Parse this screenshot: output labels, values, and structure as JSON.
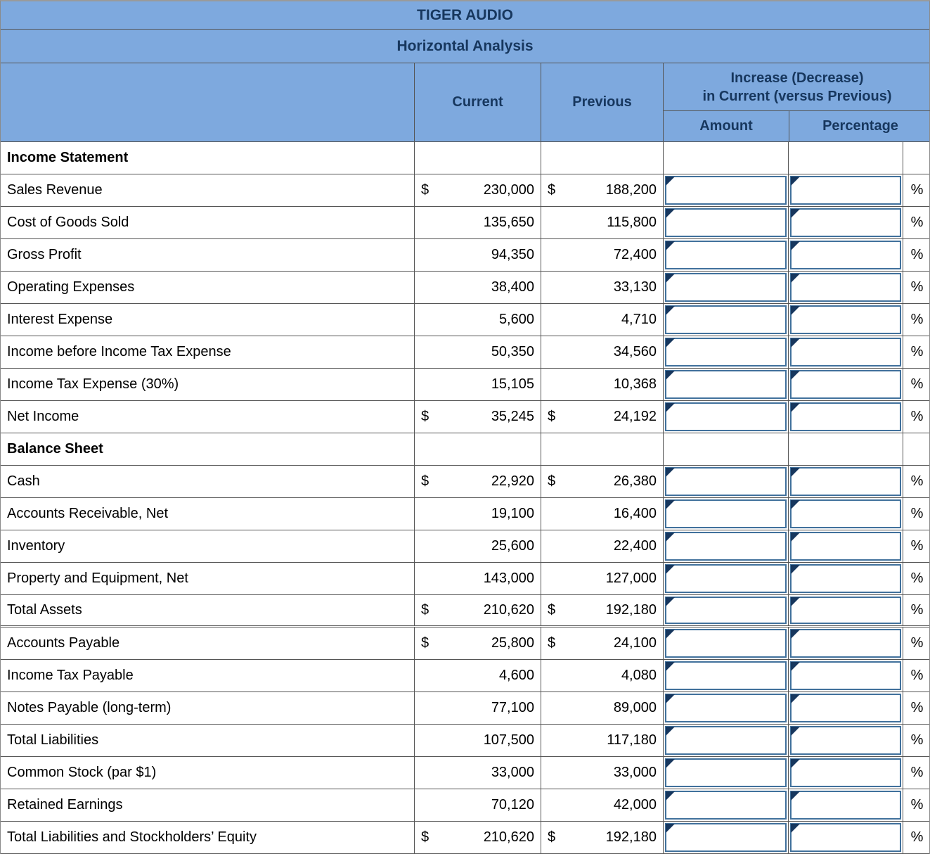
{
  "title": "TIGER AUDIO",
  "subtitle": "Horizontal Analysis",
  "columns": {
    "current": "Current",
    "previous": "Previous",
    "increase_line1": "Increase (Decrease)",
    "increase_line2": "in Current (versus Previous)",
    "amount": "Amount",
    "percentage": "Percentage"
  },
  "dollar_sign": "$",
  "percent_symbol": "%",
  "inputs": {
    "amount_value": "",
    "percentage_value": ""
  },
  "sections": [
    {
      "label": "Income Statement",
      "rows": [
        {
          "label": "Sales Revenue",
          "dollar": true,
          "current": "230,000",
          "previous": "188,200"
        },
        {
          "label": "Cost of Goods Sold",
          "dollar": false,
          "current": "135,650",
          "previous": "115,800"
        },
        {
          "label": "Gross Profit",
          "dollar": false,
          "current": "94,350",
          "previous": "72,400"
        },
        {
          "label": "Operating Expenses",
          "dollar": false,
          "current": "38,400",
          "previous": "33,130"
        },
        {
          "label": "Interest Expense",
          "dollar": false,
          "current": "5,600",
          "previous": "4,710"
        },
        {
          "label": "Income before Income Tax Expense",
          "dollar": false,
          "current": "50,350",
          "previous": "34,560"
        },
        {
          "label": "Income Tax Expense (30%)",
          "dollar": false,
          "current": "15,105",
          "previous": "10,368"
        },
        {
          "label": "Net Income",
          "dollar": true,
          "current": "35,245",
          "previous": "24,192"
        }
      ]
    },
    {
      "label": "Balance Sheet",
      "rows": [
        {
          "label": "Cash",
          "dollar": true,
          "current": "22,920",
          "previous": "26,380"
        },
        {
          "label": "Accounts Receivable, Net",
          "dollar": false,
          "current": "19,100",
          "previous": "16,400"
        },
        {
          "label": "Inventory",
          "dollar": false,
          "current": "25,600",
          "previous": "22,400"
        },
        {
          "label": "Property and Equipment, Net",
          "dollar": false,
          "current": "143,000",
          "previous": "127,000"
        },
        {
          "label": "Total Assets",
          "dollar": true,
          "current": "210,620",
          "previous": "192,180",
          "double_bottom": true
        },
        {
          "label": "Accounts Payable",
          "dollar": true,
          "current": "25,800",
          "previous": "24,100"
        },
        {
          "label": "Income Tax Payable",
          "dollar": false,
          "current": "4,600",
          "previous": "4,080"
        },
        {
          "label": "Notes Payable (long-term)",
          "dollar": false,
          "current": "77,100",
          "previous": "89,000"
        },
        {
          "label": "Total Liabilities",
          "dollar": false,
          "current": "107,500",
          "previous": "117,180"
        },
        {
          "label": "Common Stock (par $1)",
          "dollar": false,
          "current": "33,000",
          "previous": "33,000"
        },
        {
          "label": "Retained Earnings",
          "dollar": false,
          "current": "70,120",
          "previous": "42,000"
        },
        {
          "label": "Total Liabilities and Stockholders’ Equity",
          "dollar": true,
          "current": "210,620",
          "previous": "192,180"
        }
      ]
    }
  ],
  "colors": {
    "blue": "#7EA9DE",
    "navy": "#17375E",
    "border": "#555555",
    "input_border": "#41719C"
  }
}
